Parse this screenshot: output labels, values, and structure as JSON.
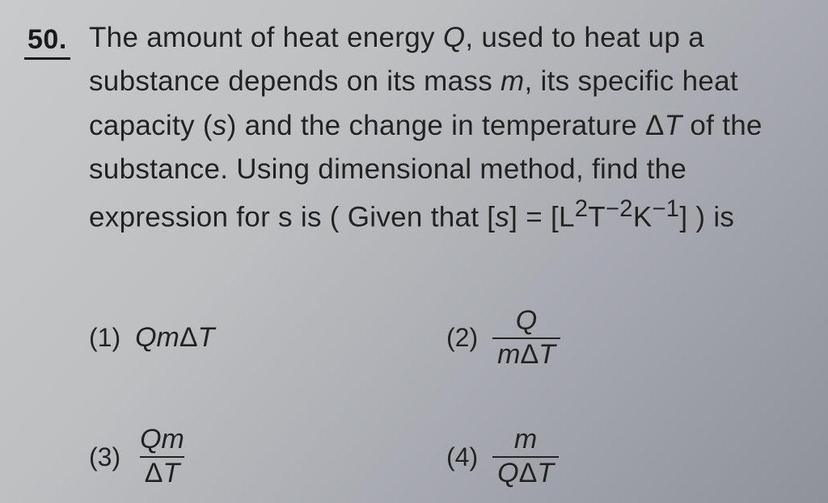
{
  "question": {
    "number": "50.",
    "stem_html": "The amount of heat energy <span class='ital'>Q</span>, used to heat up a substance depends on its mass <span class='ital'>m</span>, its specific heat capacity (<span class='ital'>s</span>) and the change in temperature Δ<span class='ital'>T</span> of the substance. Using dimensional method, find the expression for s is ( Given that [<span class='ital'>s</span>] = [L<sup>2</sup>T<sup>−2</sup>K<sup>−1</sup>] ) is"
  },
  "options": [
    {
      "num": "(1)",
      "expr_html": "<span class='ital'>Qm</span>Δ<span class='ital'>T</span>"
    },
    {
      "num": "(2)",
      "expr_html": "<span class='frac'><span class='num'><span class='ital'>Q</span></span><span class='den'><span class='ital'>m</span>Δ<span class='ital'>T</span></span></span>"
    },
    {
      "num": "(3)",
      "expr_html": "<span class='frac'><span class='num'><span class='ital'>Qm</span></span><span class='den'>Δ<span class='ital'>T</span></span></span>"
    },
    {
      "num": "(4)",
      "expr_html": "<span class='frac'><span class='num'><span class='ital'>m</span></span><span class='den'><span class='ital'>Q</span>Δ<span class='ital'>T</span></span></span>"
    }
  ]
}
